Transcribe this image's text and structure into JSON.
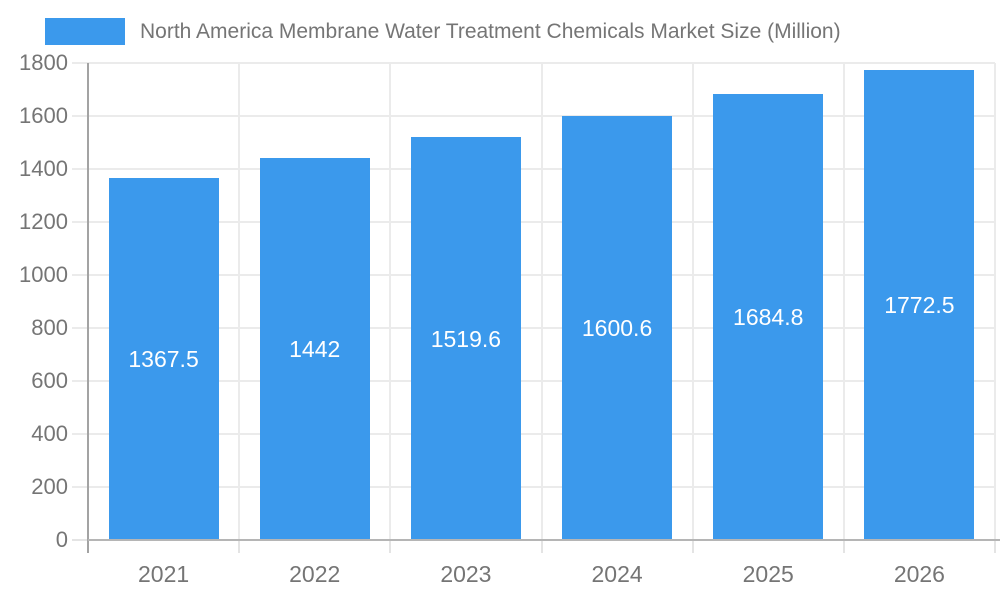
{
  "chart_data": {
    "type": "bar",
    "title": "North America Membrane Water Treatment Chemicals Market Size (Million)",
    "categories": [
      "2021",
      "2022",
      "2023",
      "2024",
      "2025",
      "2026"
    ],
    "values": [
      1367.5,
      1442,
      1519.6,
      1600.6,
      1684.8,
      1772.5
    ],
    "value_labels": [
      "1367.5",
      "1442",
      "1519.6",
      "1600.6",
      "1684.8",
      "1772.5"
    ],
    "xlabel": "",
    "ylabel": "",
    "ylim": [
      0,
      1800
    ],
    "ytick_step": 200,
    "ytick_labels": [
      "0",
      "200",
      "400",
      "600",
      "800",
      "1000",
      "1200",
      "1400",
      "1600",
      "1800"
    ],
    "grid": true,
    "legend_position": "top-left",
    "bar_color": "#3b99ec",
    "bar_label_color": "#ffffff",
    "text_color": "#757575"
  }
}
